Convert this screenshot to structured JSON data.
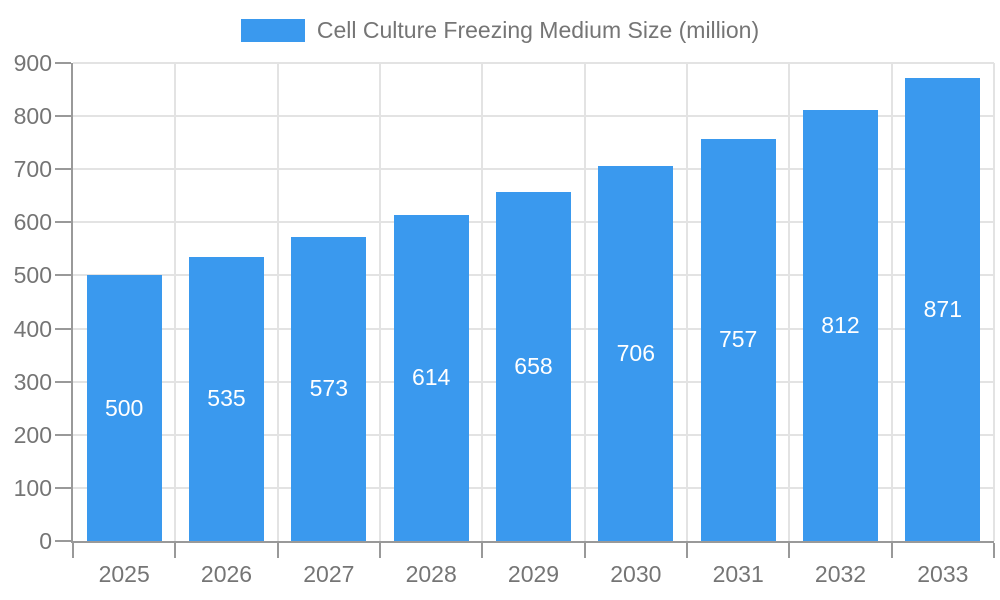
{
  "legend": {
    "label": "Cell Culture Freezing Medium Size (million)"
  },
  "chart_data": {
    "type": "bar",
    "title": "Cell Culture Freezing Medium Size (million)",
    "categories": [
      "2025",
      "2026",
      "2027",
      "2028",
      "2029",
      "2030",
      "2031",
      "2032",
      "2033"
    ],
    "values": [
      500,
      535,
      573,
      614,
      658,
      706,
      757,
      812,
      871
    ],
    "xlabel": "",
    "ylabel": "",
    "ylim": [
      0,
      900
    ],
    "yticks": [
      0,
      100,
      200,
      300,
      400,
      500,
      600,
      700,
      800,
      900
    ],
    "grid": true,
    "legend_position": "top",
    "bar_width_fraction": 0.73,
    "colors": {
      "bar": "#3a99ee",
      "grid": "#e3e3e3",
      "axis": "#999999",
      "axis_text": "#757575",
      "value_label": "#ffffff"
    }
  }
}
